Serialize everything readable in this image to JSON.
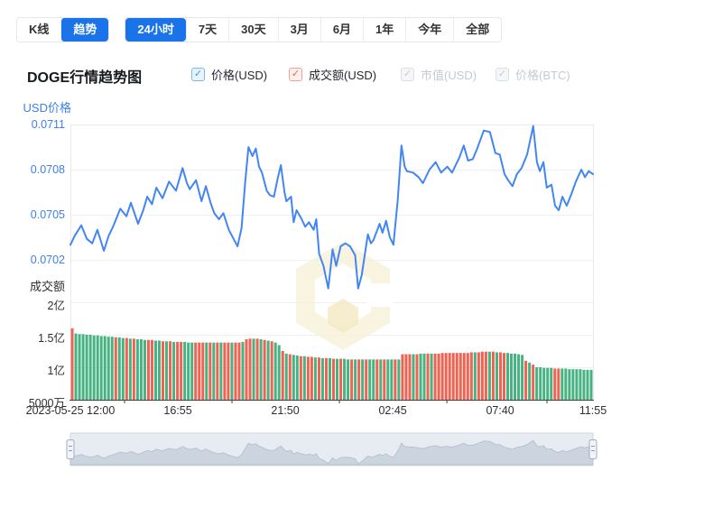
{
  "colors": {
    "accent": "#1a73e8",
    "price_line": "#4285f4",
    "price_tick": "#3e7fe8",
    "bar_up": "#47b282",
    "bar_down": "#ee6352",
    "gridline": "#efefef",
    "plot_border": "#e9e9e9",
    "axis_line": "#3f3f3f",
    "nav_bg": "#e7ecf3",
    "nav_area": "#ccd4df",
    "nav_border": "#d2d9e3",
    "nav_handle_fill": "#f1f4f8",
    "nav_handle_border": "#a3aec0",
    "watermark": "#f8f1d7",
    "watermark2": "#f3e9c2"
  },
  "toolbar": {
    "chart_type_tabs": [
      {
        "name": "kline",
        "label": "K线",
        "active": false
      },
      {
        "name": "trend",
        "label": "趋势",
        "active": true
      }
    ],
    "range_tabs": [
      {
        "name": "24h",
        "label": "24小时",
        "active": true
      },
      {
        "name": "7d",
        "label": "7天",
        "active": false
      },
      {
        "name": "30d",
        "label": "30天",
        "active": false
      },
      {
        "name": "3m",
        "label": "3月",
        "active": false
      },
      {
        "name": "6m",
        "label": "6月",
        "active": false
      },
      {
        "name": "1y",
        "label": "1年",
        "active": false
      },
      {
        "name": "ytd",
        "label": "今年",
        "active": false
      },
      {
        "name": "all",
        "label": "全部",
        "active": false
      }
    ]
  },
  "legend": {
    "title": "DOGE行情趋势图",
    "check_glyph": "✓",
    "items": [
      {
        "name": "price-usd",
        "label": "价格(USD)",
        "checked": true,
        "state": "blue"
      },
      {
        "name": "volume-usd",
        "label": "成交额(USD)",
        "checked": true,
        "state": "red"
      },
      {
        "name": "marketcap-usd",
        "label": "市值(USD)",
        "checked": true,
        "state": "off"
      },
      {
        "name": "price-btc",
        "label": "价格(BTC)",
        "checked": true,
        "state": "off"
      }
    ]
  },
  "chart_data": {
    "type": "line+bar",
    "title": "DOGE行情趋势图",
    "grid": true,
    "price_axis": {
      "label": "USD价格",
      "ticks": [
        "0.0711",
        "0.0708",
        "0.0705",
        "0.0702"
      ],
      "tick_values": [
        0.0711,
        0.0708,
        0.0705,
        0.0702
      ],
      "range_top": 0.0711,
      "step": 0.0003
    },
    "volume_axis": {
      "label": "成交额",
      "ticks": [
        {
          "label": "2亿",
          "v": 2
        },
        {
          "label": "1.5亿",
          "v": 1.5
        },
        {
          "label": "1亿",
          "v": 1
        },
        {
          "label": "5000万",
          "v": 0.5
        }
      ],
      "baseline": 0.5,
      "unit": "亿"
    },
    "x_axis": {
      "total_minutes": 1435,
      "ticks": [
        {
          "label": "2023-05-25 12:00",
          "t": 0
        },
        {
          "label": "16:55",
          "t": 295
        },
        {
          "label": "21:50",
          "t": 590
        },
        {
          "label": "02:45",
          "t": 885
        },
        {
          "label": "07:40",
          "t": 1180
        },
        {
          "label": "11:55",
          "t": 1435
        }
      ]
    },
    "series": {
      "price": {
        "name": "价格(USD)",
        "points": [
          [
            0,
            0.0703
          ],
          [
            12,
            0.07036
          ],
          [
            30,
            0.07043
          ],
          [
            45,
            0.07034
          ],
          [
            60,
            0.07031
          ],
          [
            74,
            0.0704
          ],
          [
            92,
            0.07026
          ],
          [
            105,
            0.07036
          ],
          [
            117,
            0.07042
          ],
          [
            137,
            0.07054
          ],
          [
            154,
            0.07049
          ],
          [
            166,
            0.07058
          ],
          [
            186,
            0.07044
          ],
          [
            200,
            0.07053
          ],
          [
            211,
            0.07062
          ],
          [
            224,
            0.07057
          ],
          [
            236,
            0.07068
          ],
          [
            253,
            0.07061
          ],
          [
            271,
            0.07072
          ],
          [
            290,
            0.07066
          ],
          [
            308,
            0.07081
          ],
          [
            320,
            0.07071
          ],
          [
            328,
            0.07067
          ],
          [
            345,
            0.07073
          ],
          [
            360,
            0.07059
          ],
          [
            372,
            0.07069
          ],
          [
            385,
            0.07058
          ],
          [
            395,
            0.07051
          ],
          [
            408,
            0.07047
          ],
          [
            420,
            0.07051
          ],
          [
            435,
            0.0704
          ],
          [
            450,
            0.07033
          ],
          [
            459,
            0.07029
          ],
          [
            470,
            0.07041
          ],
          [
            480,
            0.07072
          ],
          [
            489,
            0.07095
          ],
          [
            500,
            0.07089
          ],
          [
            509,
            0.07094
          ],
          [
            518,
            0.07082
          ],
          [
            526,
            0.07078
          ],
          [
            539,
            0.07066
          ],
          [
            548,
            0.07063
          ],
          [
            559,
            0.07062
          ],
          [
            570,
            0.07075
          ],
          [
            578,
            0.07083
          ],
          [
            588,
            0.07065
          ],
          [
            593,
            0.07059
          ],
          [
            606,
            0.07062
          ],
          [
            613,
            0.07045
          ],
          [
            621,
            0.07053
          ],
          [
            633,
            0.07048
          ],
          [
            645,
            0.07042
          ],
          [
            655,
            0.07045
          ],
          [
            668,
            0.0704
          ],
          [
            675,
            0.07047
          ],
          [
            683,
            0.07024
          ],
          [
            695,
            0.07016
          ],
          [
            708,
            0.07001
          ],
          [
            720,
            0.07027
          ],
          [
            730,
            0.07016
          ],
          [
            742,
            0.07029
          ],
          [
            755,
            0.07031
          ],
          [
            768,
            0.07029
          ],
          [
            782,
            0.07023
          ],
          [
            790,
            0.07001
          ],
          [
            800,
            0.0701
          ],
          [
            817,
            0.07037
          ],
          [
            825,
            0.07031
          ],
          [
            832,
            0.07033
          ],
          [
            849,
            0.07044
          ],
          [
            857,
            0.07038
          ],
          [
            867,
            0.07046
          ],
          [
            877,
            0.07035
          ],
          [
            887,
            0.0703
          ],
          [
            899,
            0.0706
          ],
          [
            909,
            0.07096
          ],
          [
            918,
            0.07082
          ],
          [
            924,
            0.07079
          ],
          [
            941,
            0.07078
          ],
          [
            956,
            0.07075
          ],
          [
            968,
            0.07071
          ],
          [
            986,
            0.0708
          ],
          [
            1003,
            0.07085
          ],
          [
            1018,
            0.07078
          ],
          [
            1035,
            0.07082
          ],
          [
            1048,
            0.07078
          ],
          [
            1068,
            0.07088
          ],
          [
            1080,
            0.07096
          ],
          [
            1092,
            0.07086
          ],
          [
            1105,
            0.07087
          ],
          [
            1117,
            0.07094
          ],
          [
            1135,
            0.07106
          ],
          [
            1152,
            0.07105
          ],
          [
            1167,
            0.07091
          ],
          [
            1179,
            0.0709
          ],
          [
            1192,
            0.07077
          ],
          [
            1202,
            0.07073
          ],
          [
            1214,
            0.07069
          ],
          [
            1226,
            0.07077
          ],
          [
            1239,
            0.07081
          ],
          [
            1254,
            0.0709
          ],
          [
            1271,
            0.07109
          ],
          [
            1281,
            0.07085
          ],
          [
            1289,
            0.07079
          ],
          [
            1299,
            0.07085
          ],
          [
            1308,
            0.07068
          ],
          [
            1321,
            0.0707
          ],
          [
            1331,
            0.07056
          ],
          [
            1341,
            0.07053
          ],
          [
            1351,
            0.07062
          ],
          [
            1363,
            0.07056
          ],
          [
            1376,
            0.07064
          ],
          [
            1388,
            0.07072
          ],
          [
            1403,
            0.0708
          ],
          [
            1413,
            0.07075
          ],
          [
            1423,
            0.07079
          ],
          [
            1435,
            0.07077
          ]
        ]
      },
      "volume": {
        "name": "成交额(USD)",
        "unit": "亿",
        "interval_minutes": 10,
        "values": [
          1.6,
          1.52,
          1.51,
          1.51,
          1.5,
          1.5,
          1.49,
          1.49,
          1.48,
          1.48,
          1.47,
          1.47,
          1.46,
          1.46,
          1.45,
          1.45,
          1.44,
          1.44,
          1.43,
          1.43,
          1.42,
          1.42,
          1.42,
          1.41,
          1.41,
          1.4,
          1.4,
          1.4,
          1.39,
          1.39,
          1.39,
          1.39,
          1.38,
          1.38,
          1.38,
          1.38,
          1.38,
          1.38,
          1.38,
          1.38,
          1.38,
          1.38,
          1.38,
          1.38,
          1.38,
          1.38,
          1.38,
          1.39,
          1.43,
          1.44,
          1.44,
          1.44,
          1.43,
          1.42,
          1.41,
          1.4,
          1.38,
          1.34,
          1.25,
          1.21,
          1.2,
          1.19,
          1.18,
          1.17,
          1.17,
          1.16,
          1.16,
          1.15,
          1.15,
          1.14,
          1.14,
          1.14,
          1.13,
          1.13,
          1.13,
          1.13,
          1.12,
          1.12,
          1.12,
          1.12,
          1.12,
          1.12,
          1.12,
          1.12,
          1.12,
          1.12,
          1.12,
          1.12,
          1.12,
          1.12,
          1.12,
          1.2,
          1.2,
          1.2,
          1.2,
          1.2,
          1.21,
          1.21,
          1.21,
          1.21,
          1.21,
          1.21,
          1.22,
          1.22,
          1.22,
          1.22,
          1.22,
          1.22,
          1.22,
          1.22,
          1.23,
          1.23,
          1.23,
          1.24,
          1.24,
          1.24,
          1.24,
          1.23,
          1.23,
          1.22,
          1.22,
          1.21,
          1.21,
          1.2,
          1.19,
          1.1,
          1.07,
          1.04,
          1.0,
          1.0,
          0.99,
          0.99,
          0.99,
          0.98,
          0.98,
          0.98,
          0.98,
          0.97,
          0.97,
          0.97,
          0.97,
          0.96,
          0.96,
          0.96
        ],
        "down_bars": [
          0,
          12,
          15,
          17,
          21,
          22,
          25,
          27,
          29,
          30,
          34,
          35,
          36,
          38,
          40,
          42,
          43,
          45,
          46,
          48,
          49,
          51,
          53,
          55,
          58,
          60,
          63,
          65,
          66,
          68,
          70,
          72,
          74,
          77,
          79,
          81,
          84,
          86,
          89,
          91,
          92,
          93,
          95,
          98,
          100,
          101,
          102,
          103,
          104,
          105,
          106,
          107,
          108,
          109,
          110,
          112,
          113,
          114,
          116,
          118,
          119,
          125,
          127,
          133,
          134
        ]
      }
    }
  },
  "navigator": {
    "selected_range": "full"
  }
}
